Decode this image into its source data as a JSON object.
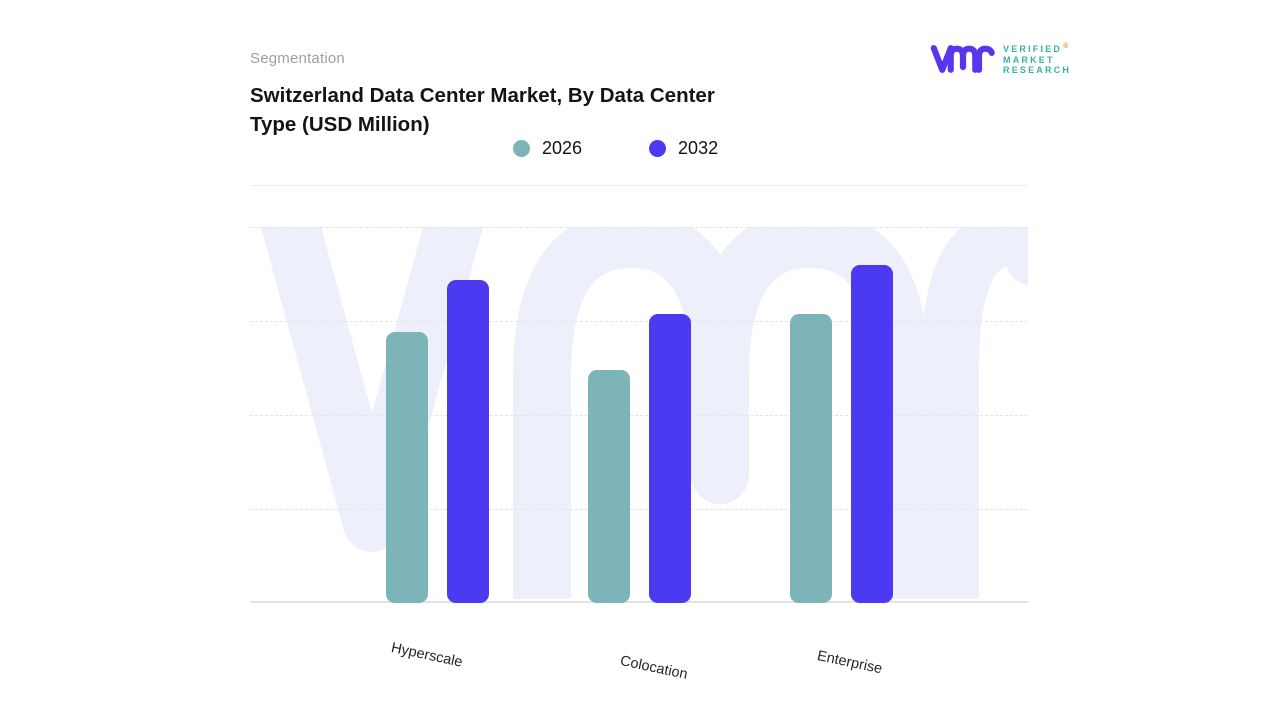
{
  "header": {
    "eyebrow": "Segmentation",
    "title_line1": "Switzerland Data Center Market, By Data Center",
    "title_line2": "Type (USD Million)"
  },
  "logo": {
    "brand_lines": [
      "VERIFIED",
      "MARKET",
      "RESEARCH"
    ],
    "registered_symbol": "®",
    "mark_color": "#5A35EE",
    "text_color": "#38B2A7"
  },
  "chart_data": {
    "type": "bar",
    "title": "Switzerland Data Center Market, By Data Center Type (USD Million)",
    "categories": [
      "Hyperscale",
      "Colocation",
      "Enterprise"
    ],
    "series": [
      {
        "name": "2026",
        "color": "#7CB4B7",
        "values": [
          72,
          62,
          77
        ]
      },
      {
        "name": "2032",
        "color": "#4B3AF2",
        "values": [
          86,
          77,
          90
        ]
      }
    ],
    "xlabel": "",
    "ylabel": "",
    "ylim": [
      0,
      100
    ],
    "y_axis_labels_visible": false,
    "grid": "horizontal-dashed",
    "legend_position": "top-center",
    "grid_color": "#E4E4E4",
    "axis_line_color": "#E2E2E2",
    "watermark_color": "#EDEFFA"
  }
}
